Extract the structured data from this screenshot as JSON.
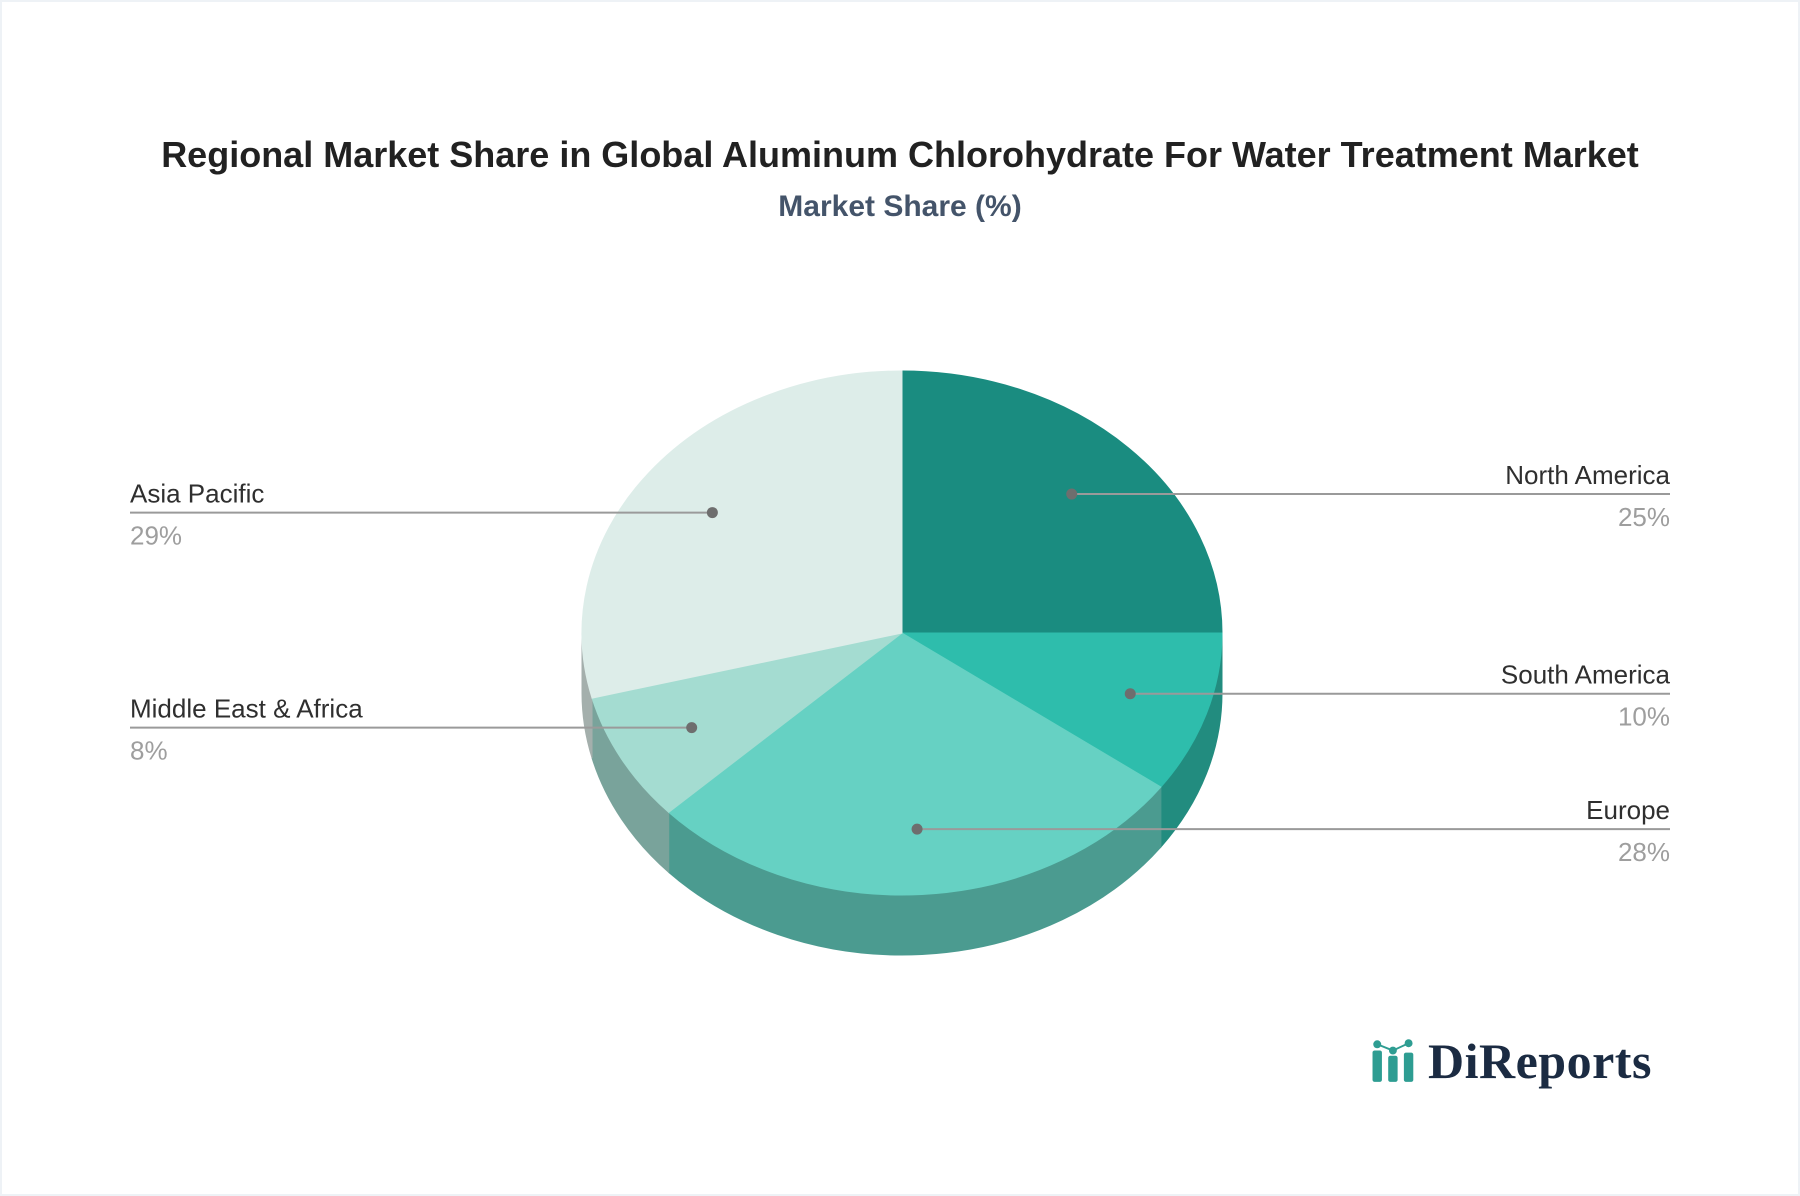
{
  "title": "Regional Market Share in Global Aluminum Chlorohydrate For Water Treatment Market",
  "subtitle": "Market Share (%)",
  "brand": {
    "name": "DiReports",
    "icon": "bar-line-chart-icon",
    "icon_color": "#2E9D92",
    "text_color": "#1B2B42"
  },
  "chart_data": {
    "type": "pie",
    "title": "Regional Market Share in Global Aluminum Chlorohydrate For Water Treatment Market",
    "subtitle": "Market Share (%)",
    "unit": "%",
    "effect": "3d",
    "start_angle_deg": 0,
    "direction": "clockwise",
    "slices": [
      {
        "label": "North America",
        "value": 25,
        "color": "#1A8C80"
      },
      {
        "label": "South America",
        "value": 10,
        "color": "#2EBDAC"
      },
      {
        "label": "Europe",
        "value": 28,
        "color": "#66D1C3"
      },
      {
        "label": "Middle East & Africa",
        "value": 8,
        "color": "#A4DCD1"
      },
      {
        "label": "Asia Pacific",
        "value": 29,
        "color": "#DDEDE9"
      }
    ],
    "style": {
      "connector_line_color": "#9A9A9A",
      "connector_dot_color": "#6E6E6E",
      "label_name_color": "#2F2F2F",
      "label_value_color": "#9E9E9E"
    }
  }
}
